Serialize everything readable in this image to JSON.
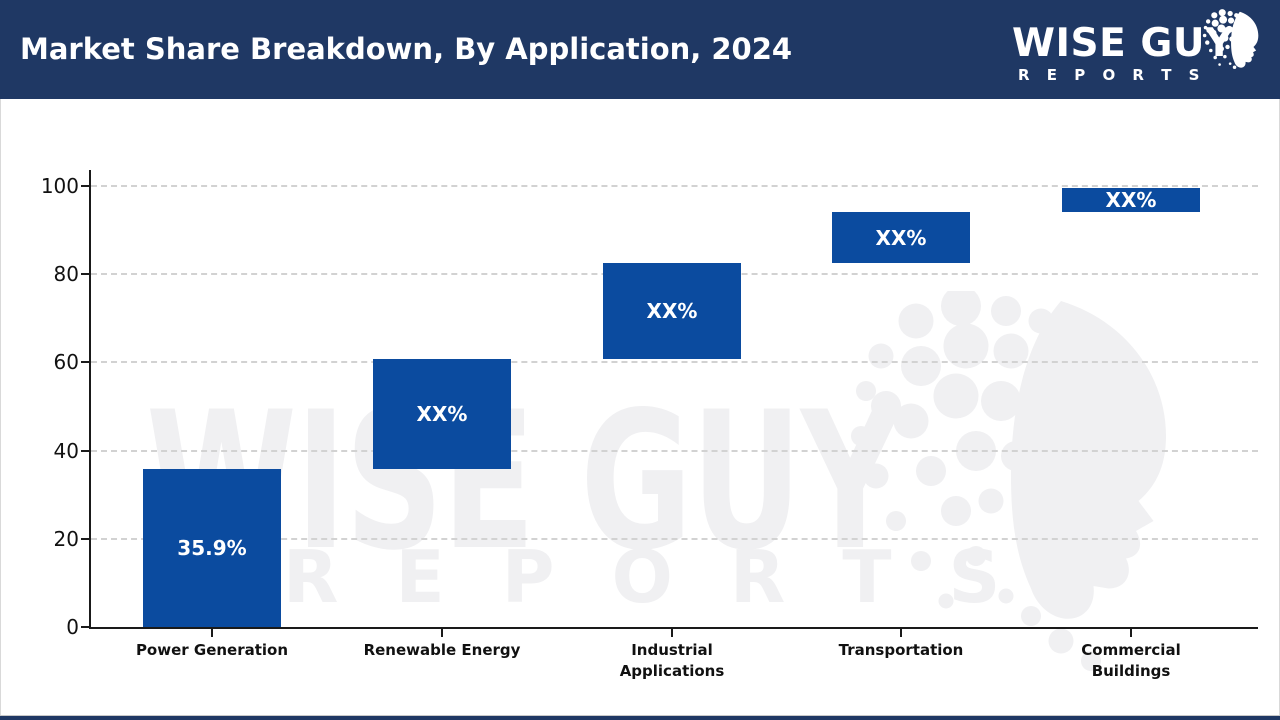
{
  "header": {
    "title": "Market Share Breakdown, By Application, 2024",
    "logo_line1": "WISE GUY",
    "logo_line2": "R E P O R T S"
  },
  "watermark": {
    "line1": "WISE GUY",
    "line2": "R E P O R T S"
  },
  "colors": {
    "header_background": "#1F3864",
    "footer_background": "#1F3864",
    "bar": "#0B4B9F",
    "bar_label": "#FFFFFF",
    "gridline": "#D2D2D2",
    "watermark": "#F0F0F2"
  },
  "chart_data": {
    "type": "bar",
    "subtype": "waterfall",
    "title": "Market Share Breakdown, By Application, 2024",
    "categories": [
      "Power Generation",
      "Renewable Energy",
      "Industrial Applications",
      "Transportation",
      "Commercial Buildings"
    ],
    "category_label_lines": [
      [
        "Power Generation"
      ],
      [
        "Renewable Energy"
      ],
      [
        "Industrial",
        "Applications"
      ],
      [
        "Transportation"
      ],
      [
        "Commercial",
        "Buildings"
      ]
    ],
    "segments": [
      {
        "category": "Power Generation",
        "start": 0,
        "end": 35.9,
        "label": "35.9%"
      },
      {
        "category": "Renewable Energy",
        "start": 35.9,
        "end": 60.8,
        "label": "XX%"
      },
      {
        "category": "Industrial Applications",
        "start": 60.8,
        "end": 82.6,
        "label": "XX%"
      },
      {
        "category": "Transportation",
        "start": 82.6,
        "end": 94.0,
        "label": "XX%"
      },
      {
        "category": "Commercial Buildings",
        "start": 94.0,
        "end": 99.5,
        "label": "XX%"
      }
    ],
    "yticks": [
      0,
      20,
      40,
      60,
      80,
      100
    ],
    "ylim": [
      0,
      103.5
    ],
    "xlabel": "",
    "ylabel": "",
    "grid": "horizontal-dashed",
    "legend_position": "none",
    "bar_color": "#0B4B9F",
    "bar_label_color": "#FFFFFF"
  }
}
